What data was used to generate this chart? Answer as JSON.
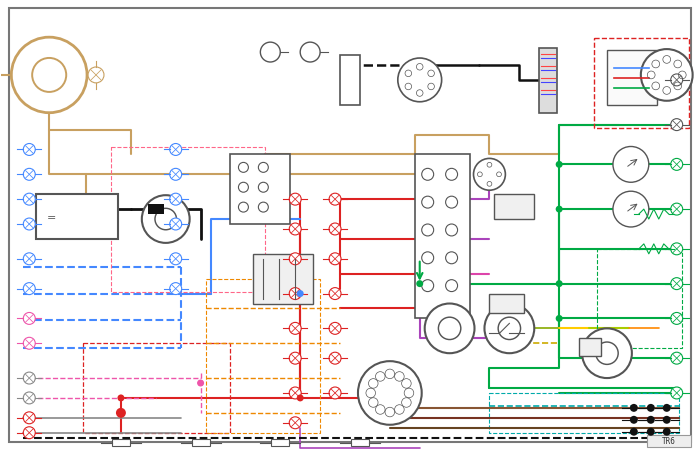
{
  "fig_width": 7.0,
  "fig_height": 4.52,
  "dpi": 100,
  "bg_color": "#ffffff",
  "xmin": 0,
  "xmax": 700,
  "ymin": 0,
  "ymax": 452
}
